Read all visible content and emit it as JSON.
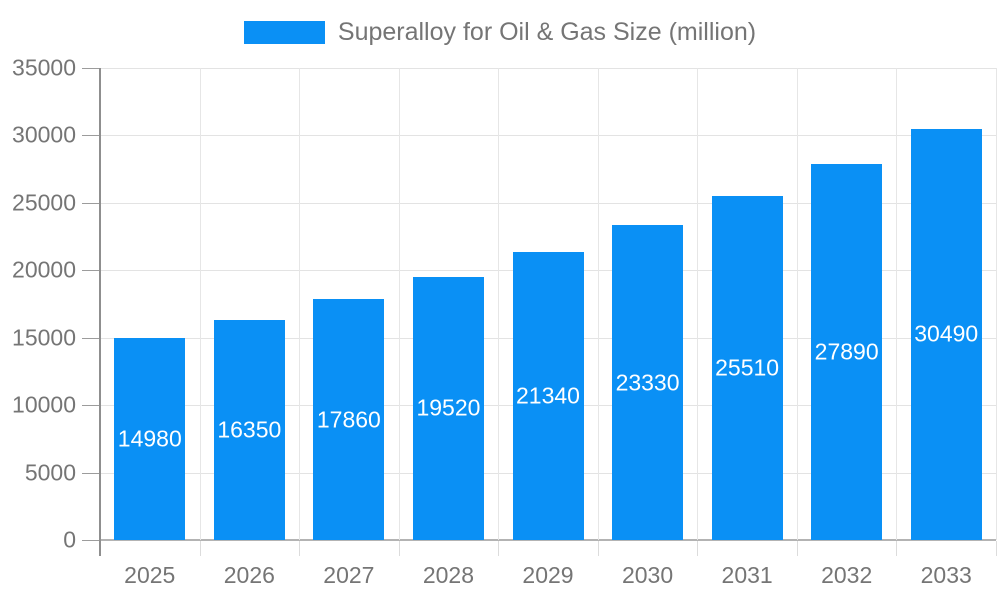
{
  "chart_data": {
    "type": "bar",
    "title": "Superalloy for Oil & Gas Size (million)",
    "legend": {
      "position": "top",
      "entries": [
        {
          "label": "Superalloy for Oil & Gas Size (million)",
          "color": "#0a90f5"
        }
      ]
    },
    "categories": [
      "2025",
      "2026",
      "2027",
      "2028",
      "2029",
      "2030",
      "2031",
      "2032",
      "2033"
    ],
    "series": [
      {
        "name": "Superalloy for Oil & Gas Size (million)",
        "values": [
          14980,
          16350,
          17860,
          19520,
          21340,
          23330,
          25510,
          27890,
          30490
        ]
      }
    ],
    "data_labels": [
      "14980",
      "16350",
      "17860",
      "19520",
      "21340",
      "23330",
      "25510",
      "27890",
      "30490"
    ],
    "xlabel": "",
    "ylabel": "",
    "ylim": [
      0,
      35000
    ],
    "ytick_step": 5000,
    "ytick_labels": [
      "0",
      "5000",
      "10000",
      "15000",
      "20000",
      "25000",
      "30000",
      "35000"
    ],
    "grid": true,
    "colors": {
      "bar": "#0a90f5",
      "bar_label_text": "#ffffff",
      "axis_text": "#757575",
      "gridline": "#e3e3e3",
      "baseline": "#b3b3b3",
      "axis_line": "#8f8f8f"
    }
  }
}
